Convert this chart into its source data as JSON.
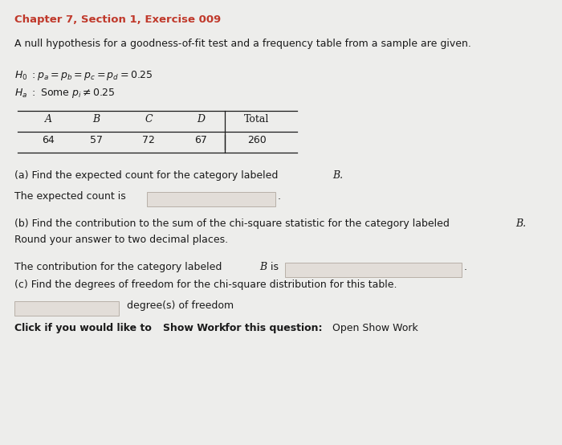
{
  "title": "Chapter 7, Section 1, Exercise 009",
  "subtitle": "A null hypothesis for a goodness-of-fit test and a frequency table from a sample are given.",
  "table_headers": [
    "A",
    "B",
    "C",
    "D",
    "Total"
  ],
  "table_values": [
    "64",
    "57",
    "72",
    "67",
    "260"
  ],
  "bg_color": "#ededeb",
  "title_color": "#c0392b",
  "text_color": "#1a1a1a",
  "input_box_color": "#e2ddd8",
  "input_box_border": "#b8b0a8",
  "font_size_title": 9.5,
  "font_size_body": 9.0,
  "font_size_table": 9.0
}
